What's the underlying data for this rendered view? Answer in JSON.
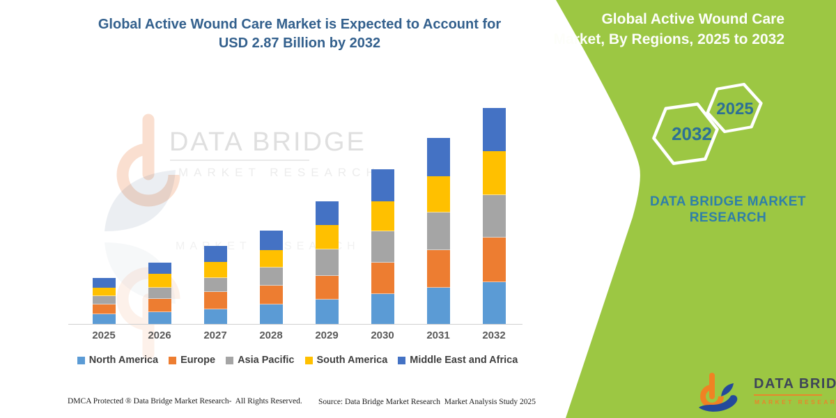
{
  "header": {
    "title_line1": "Global Active Wound Care Market is Expected to Account for",
    "title_line2": "USD 2.87 Billion by 2032",
    "title_color": "#33608D"
  },
  "side_panel": {
    "heading_line1": "Global Active Wound Care",
    "heading_line2": "Market, By Regions, 2025 to 2032",
    "hexagon_back_label": "2032",
    "hexagon_front_label": "2025",
    "brand_line1": "DATA BRIDGE MARKET",
    "brand_line2": "RESEARCH",
    "panel_color": "#9CC743",
    "hex_number_color": "#2D7095",
    "brand_text_color": "#2F7FA8"
  },
  "watermark": {
    "title": "DATA BRIDGE",
    "subtitle": "MARKET RESEARCH",
    "ghost_row": "MARKET RESEARCH"
  },
  "logo": {
    "name": "DATA BRIDGE",
    "subtitle": "MARKET RESEARCH",
    "accent_orange": "#F08223",
    "accent_blue": "#24499B"
  },
  "footer": {
    "dmca": "DMCA Protected ® Data Bridge Market Research-  All Rights Reserved.",
    "source": "Source: Data Bridge Market Research  Market Analysis Study 2025"
  },
  "chart_data": {
    "type": "bar",
    "stacked": true,
    "title": "Global Active Wound Care Market is Expected to Account for USD 2.87 Billion by 2032",
    "unit": "USD Billion",
    "categories": [
      "2025",
      "2026",
      "2027",
      "2028",
      "2029",
      "2030",
      "2031",
      "2032"
    ],
    "series": [
      {
        "name": "North America",
        "color": "#5B9BD5",
        "values": [
          0.14,
          0.166,
          0.207,
          0.267,
          0.329,
          0.406,
          0.485,
          0.565
        ]
      },
      {
        "name": "Europe",
        "color": "#ED7D31",
        "values": [
          0.129,
          0.175,
          0.23,
          0.246,
          0.316,
          0.415,
          0.502,
          0.59
        ]
      },
      {
        "name": "Asia Pacific",
        "color": "#A5A5A5",
        "values": [
          0.108,
          0.148,
          0.184,
          0.246,
          0.35,
          0.415,
          0.501,
          0.562
        ]
      },
      {
        "name": "South America",
        "color": "#FFC000",
        "values": [
          0.114,
          0.182,
          0.208,
          0.23,
          0.323,
          0.391,
          0.477,
          0.581
        ]
      },
      {
        "name": "Middle East and Africa",
        "color": "#4472C4",
        "values": [
          0.123,
          0.153,
          0.212,
          0.254,
          0.317,
          0.424,
          0.507,
          0.572
        ]
      }
    ],
    "totals": [
      0.614,
      0.824,
      1.041,
      1.243,
      1.635,
      2.051,
      2.472,
      2.87
    ],
    "ylim": [
      0,
      3.0
    ],
    "grid": false,
    "y_axis_visible": false,
    "legend_position": "bottom",
    "x_tick_color": "#595959"
  }
}
